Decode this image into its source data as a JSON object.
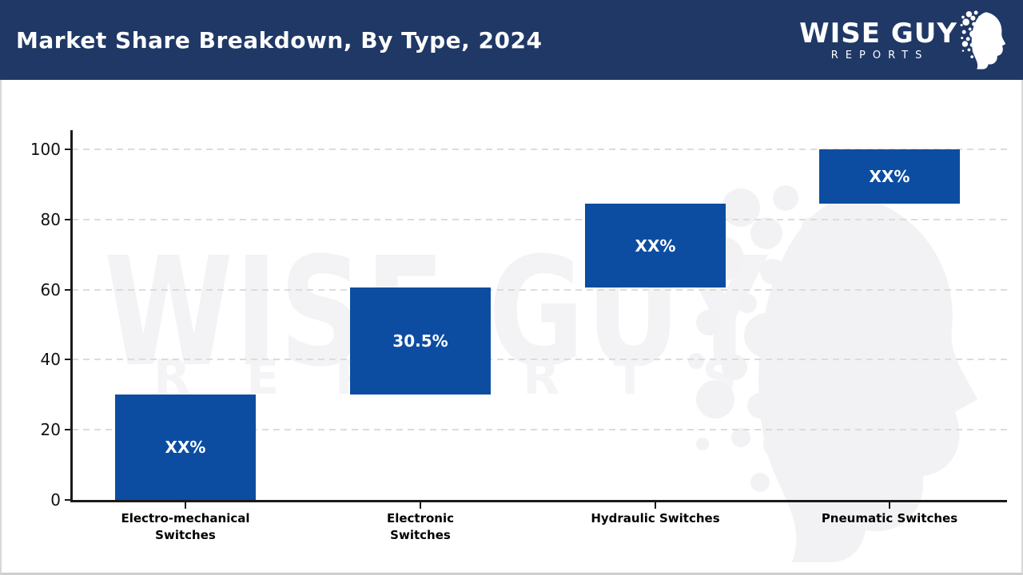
{
  "header": {
    "title": "Market Share Breakdown, By Type, 2024",
    "logo": {
      "line1": "WISE GUY",
      "line2": "REPORTS"
    }
  },
  "watermark": {
    "line1": "WISE GUY",
    "line2": "REPORTS"
  },
  "chart_data": {
    "type": "bar",
    "variant": "stacked-waterfall",
    "title": "Market Share Breakdown, By Type, 2024",
    "xlabel": "",
    "ylabel": "",
    "ylim": [
      0,
      100
    ],
    "yticks": [
      0,
      20,
      40,
      60,
      80,
      100
    ],
    "grid": "horizontal-dashed",
    "legend": "none",
    "categories": [
      "Electro-mechanical Switches",
      "Electronic Switches",
      "Hydraulic Switches",
      "Pneumatic Switches"
    ],
    "category_lines": [
      [
        "Electro-mechanical",
        "Switches"
      ],
      [
        "Electronic",
        "Switches"
      ],
      [
        "Hydraulic Switches"
      ],
      [
        "Pneumatic Switches"
      ]
    ],
    "segments": [
      {
        "category": "Electro-mechanical Switches",
        "start": 0,
        "end": 30,
        "value": 30,
        "value_label": "XX%"
      },
      {
        "category": "Electronic Switches",
        "start": 30,
        "end": 60.5,
        "value": 30.5,
        "value_label": "30.5%"
      },
      {
        "category": "Hydraulic Switches",
        "start": 60.5,
        "end": 84.5,
        "value": 24,
        "value_label": "XX%"
      },
      {
        "category": "Pneumatic Switches",
        "start": 84.5,
        "end": 100,
        "value": 15.5,
        "value_label": "XX%"
      }
    ]
  },
  "colors": {
    "header_bg": "#1F3866",
    "bar": "#0C4DA2",
    "bar_label": "#FFFFFF",
    "grid": "#DCDCDC",
    "axis": "#1A1A1A",
    "watermark": "#F2F2F4",
    "frame_border": "#D8D8D8"
  }
}
